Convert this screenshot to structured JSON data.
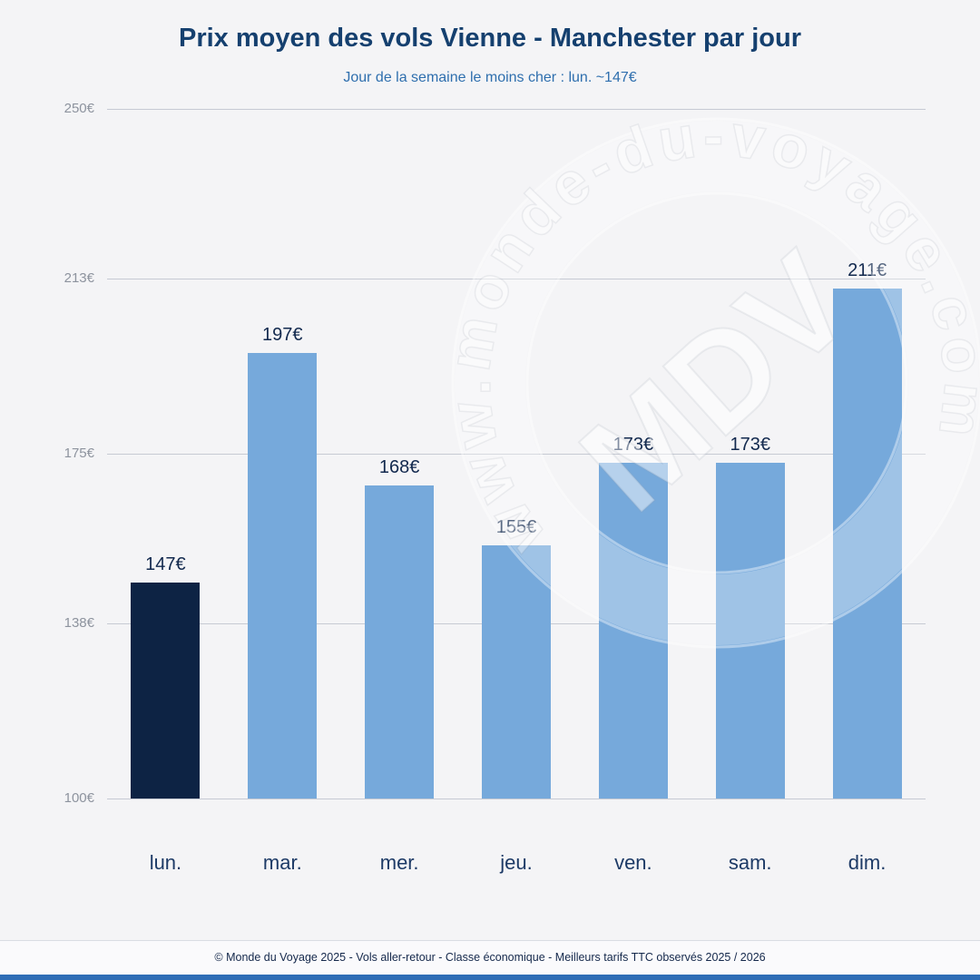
{
  "title": "Prix moyen des vols Vienne - Manchester par jour",
  "subtitle": "Jour de la semaine le moins cher : lun. ~147€",
  "footer": "© Monde du Voyage 2025 - Vols aller-retour - Classe économique - Meilleurs tarifs TTC observés 2025 / 2026",
  "watermark": {
    "ring_text": "www.monde-du-voyage.com",
    "center_text": "MDV"
  },
  "colors": {
    "background": "#f4f4f6",
    "title": "#15406f",
    "subtitle": "#2f6fae",
    "bar": "#76a9db",
    "bar_highlight": "#0d2344",
    "grid": "#c6cad3",
    "y_axis_label": "#8d939e",
    "x_axis_label": "#1d3a66",
    "value_label": "#12294e",
    "footer_accent": "#2e6db6"
  },
  "chart_data": {
    "type": "bar",
    "title": "Prix moyen des vols Vienne - Manchester par jour",
    "subtitle": "Jour de la semaine le moins cher : lun. ~147€",
    "categories": [
      "lun.",
      "mar.",
      "mer.",
      "jeu.",
      "ven.",
      "sam.",
      "dim."
    ],
    "values": [
      147,
      197,
      168,
      155,
      173,
      173,
      211
    ],
    "value_suffix": "€",
    "highlight_index": 0,
    "highlight_meaning": "cheapest day of the week",
    "xlabel": "",
    "ylabel": "",
    "ylim": [
      100,
      250
    ],
    "yticks": [
      250,
      213,
      175,
      138,
      100
    ],
    "grid": true,
    "legend": false
  }
}
